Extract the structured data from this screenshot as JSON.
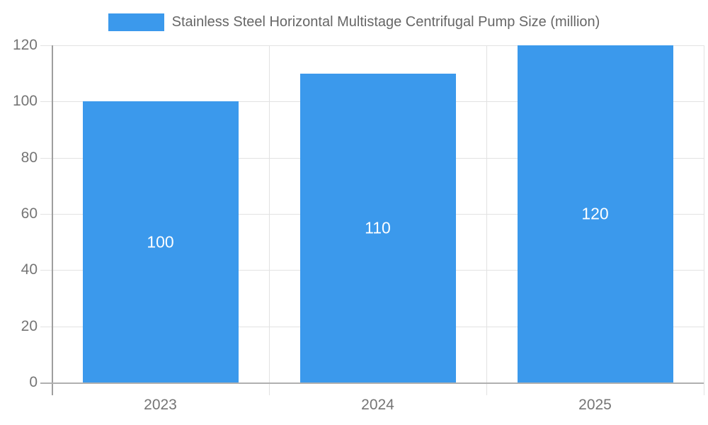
{
  "legend": {
    "label": "Stainless Steel Horizontal Multistage Centrifugal Pump Size (million)"
  },
  "chart_data": {
    "type": "bar",
    "categories": [
      "2023",
      "2024",
      "2025"
    ],
    "values": [
      100,
      110,
      120
    ],
    "series": [
      {
        "name": "Stainless Steel Horizontal Multistage Centrifugal Pump Size (million)",
        "values": [
          100,
          110,
          120
        ]
      }
    ],
    "value_labels": [
      "100",
      "110",
      "120"
    ],
    "title": "",
    "xlabel": "",
    "ylabel": "",
    "ylim": [
      0,
      120
    ],
    "yticks": [
      0,
      20,
      40,
      60,
      80,
      100,
      120
    ],
    "ytick_labels": [
      "0",
      "20",
      "40",
      "60",
      "80",
      "100",
      "120"
    ],
    "grid": true,
    "legend_position": "top-center",
    "colors": {
      "bar": "#3b99ec",
      "value_label": "#ffffff",
      "axis_text": "#757575",
      "legend_text": "#666666",
      "gridline": "#e2e2e2",
      "y_axis_line": "#9e9e9e",
      "x_axis_line": "#b0b0b0"
    }
  }
}
